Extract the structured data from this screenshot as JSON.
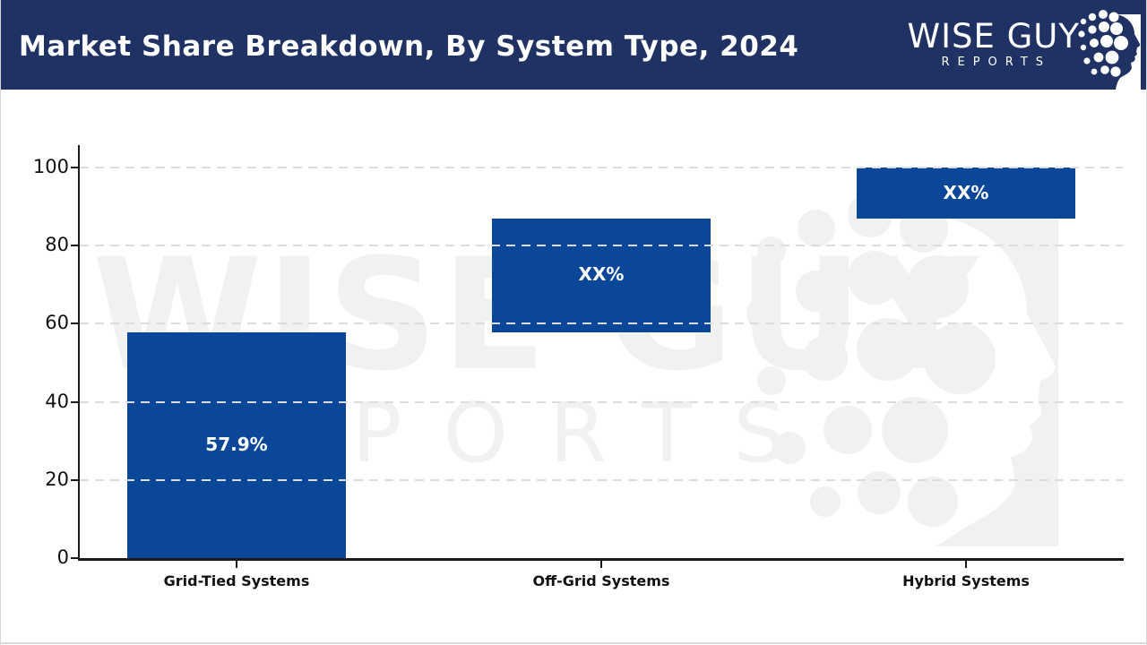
{
  "header": {
    "title": "Market Share Breakdown, By System Type, 2024",
    "logo": {
      "line1": "WISE GUY",
      "line2": "REPORTS"
    }
  },
  "watermark": {
    "line1": "WISE GUY",
    "line2": "REPORTS"
  },
  "colors": {
    "header_bg": "#203264",
    "bar": "#0a4798",
    "gridline": "#dcdcdc",
    "axis": "#1a1a1a",
    "value_label": "#ffffff",
    "watermark": "#f1f1f1",
    "frame_border": "#d9d9d9"
  },
  "chart_data": {
    "type": "bar",
    "subtype": "floating-waterfall",
    "title": "Market Share Breakdown, By System Type, 2024",
    "categories": [
      "Grid-Tied Systems",
      "Off-Grid Systems",
      "Hybrid Systems"
    ],
    "segments": [
      {
        "category": "Grid-Tied Systems",
        "from": 0,
        "to": 57.9,
        "value": 57.9,
        "label": "57.9%"
      },
      {
        "category": "Off-Grid Systems",
        "from": 57.9,
        "to": 86.9,
        "value": 29.0,
        "label": "XX%"
      },
      {
        "category": "Hybrid Systems",
        "from": 86.9,
        "to": 100,
        "value": 13.1,
        "label": "XX%"
      }
    ],
    "yticks": [
      0,
      20,
      40,
      60,
      80,
      100
    ],
    "ylim": [
      0,
      105.7
    ],
    "xlabel": "",
    "ylabel": "",
    "grid": "horizontal-dashed",
    "legend": "none",
    "bar_color": "#0a4798"
  }
}
